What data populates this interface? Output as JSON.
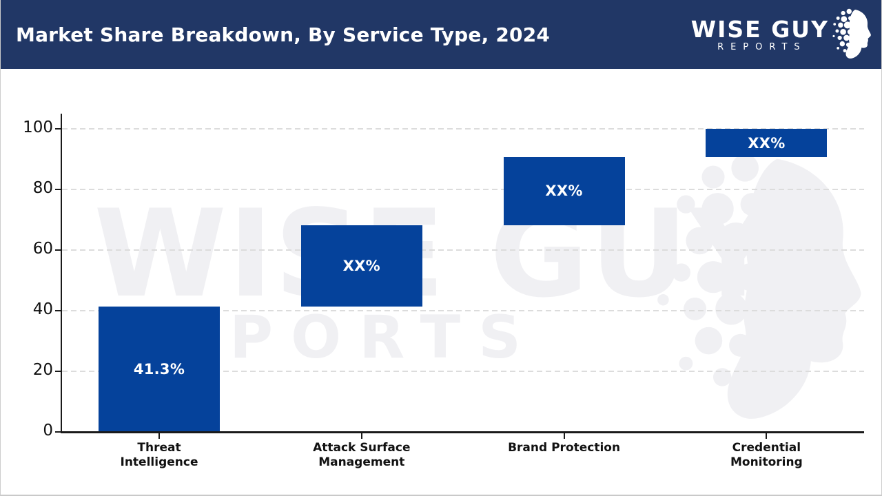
{
  "header": {
    "title": "Market Share Breakdown, By Service Type, 2024",
    "logo": {
      "line1": "WISE GUY",
      "line2": "REPORTS"
    }
  },
  "watermark": {
    "line1": "WISE GUY",
    "line2": "REPORTS"
  },
  "chart_data": {
    "type": "bar",
    "subtype": "waterfall",
    "title": "Market Share Breakdown, By Service Type, 2024",
    "categories": [
      [
        "Threat",
        "Intelligence"
      ],
      [
        "Attack Surface",
        "Management"
      ],
      [
        "Brand Protection"
      ],
      [
        "Credential",
        "Monitoring"
      ]
    ],
    "segments": [
      {
        "name": "Threat Intelligence",
        "start": 0,
        "end": 41.3,
        "label": "41.3%"
      },
      {
        "name": "Attack Surface Management",
        "start": 41.3,
        "end": 68.2,
        "label": "XX%"
      },
      {
        "name": "Brand Protection",
        "start": 68.2,
        "end": 90.5,
        "label": "XX%"
      },
      {
        "name": "Credential Monitoring",
        "start": 90.5,
        "end": 99.8,
        "label": "XX%"
      }
    ],
    "yticks": [
      0,
      20,
      40,
      60,
      80,
      100
    ],
    "ylim": [
      0,
      100
    ],
    "xlabel": "",
    "ylabel": "",
    "grid": "horizontal-dashed",
    "legend": "none",
    "bar_color": "#05429b",
    "bar_label_color": "#ffffff"
  },
  "colors": {
    "header_bg": "#213766",
    "title_text": "#ffffff",
    "bar": "#05429b",
    "watermark": "#f0f0f3",
    "axis": "#1a1a1a",
    "grid": "#dcdcdc"
  }
}
